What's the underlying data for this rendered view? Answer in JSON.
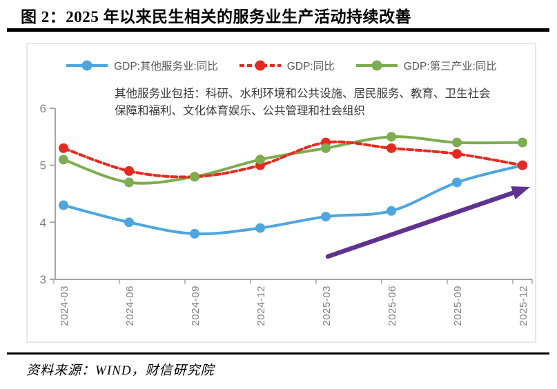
{
  "title": "图 2：2025 年以来民生相关的服务业生产活动持续改善",
  "source": "资料来源：WIND，财信研究院",
  "chart_data": {
    "type": "line",
    "categories": [
      "2024-03",
      "2024-06",
      "2024-09",
      "2024-12",
      "2025-03",
      "2025-06",
      "2025-09",
      "2025-12"
    ],
    "series": [
      {
        "name": "GDP:其他服务业:同比",
        "color": "#4da6df",
        "dash": false,
        "values": [
          4.3,
          4.0,
          3.8,
          3.9,
          4.1,
          4.2,
          4.7,
          5.0
        ]
      },
      {
        "name": "GDP:同比",
        "color": "#e8291d",
        "dash": true,
        "values": [
          5.3,
          4.9,
          4.8,
          5.0,
          5.4,
          5.3,
          5.2,
          5.0
        ]
      },
      {
        "name": "GDP:第三产业:同比",
        "color": "#7cad4f",
        "dash": false,
        "values": [
          5.1,
          4.7,
          4.8,
          5.1,
          5.3,
          5.5,
          5.4,
          5.4
        ]
      }
    ],
    "annotation": "其他服务业包括：科研、水利环境和公共设施、居民服务、教育、卫生社会保障和福利、文化体育娱乐、公共管理和社会组织",
    "yticks": [
      3,
      4,
      5,
      6
    ],
    "ylim": [
      3,
      6
    ],
    "grid": false,
    "legend_position": "top",
    "axis_color": "#a6a6a6",
    "tick_label_color": "#7f7f7f",
    "arrow": {
      "color": "#5f3292",
      "from": {
        "x_index": 4,
        "value": 3.4
      },
      "to": {
        "x_index": 7,
        "value": 4.62
      }
    }
  }
}
